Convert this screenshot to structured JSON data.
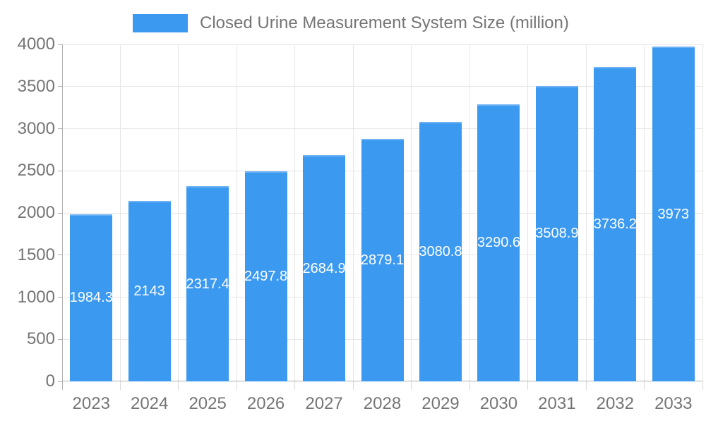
{
  "chart_data": {
    "type": "bar",
    "title": "",
    "legend": {
      "label": "Closed Urine Measurement System Size (million)",
      "position": "top"
    },
    "categories": [
      "2023",
      "2024",
      "2025",
      "2026",
      "2027",
      "2028",
      "2029",
      "2030",
      "2031",
      "2032",
      "2033"
    ],
    "series": [
      {
        "name": "Closed Urine Measurement System Size (million)",
        "values": [
          1984.3,
          2143,
          2317.4,
          2497.8,
          2684.9,
          2879.1,
          3080.8,
          3290.6,
          3508.9,
          3736.2,
          3973
        ]
      }
    ],
    "bar_labels": [
      "1984.3",
      "2143",
      "2317.4",
      "2497.8",
      "2684.9",
      "2879.1",
      "3080.8",
      "3290.6",
      "3508.9",
      "3736.2",
      "3973"
    ],
    "xlabel": "",
    "ylabel": "",
    "ylim": [
      0,
      4000
    ],
    "yticks": [
      0,
      500,
      1000,
      1500,
      2000,
      2500,
      3000,
      3500,
      4000
    ],
    "grid": true,
    "legend_position": "top-center"
  },
  "colors": {
    "bar": "#3B99F0",
    "bar_label_text": "#ffffff",
    "axis_text": "#757575",
    "grid_line": "#e6e6e6",
    "axis_line": "#b0b0b0",
    "tick_line": "#d9d9d9"
  }
}
